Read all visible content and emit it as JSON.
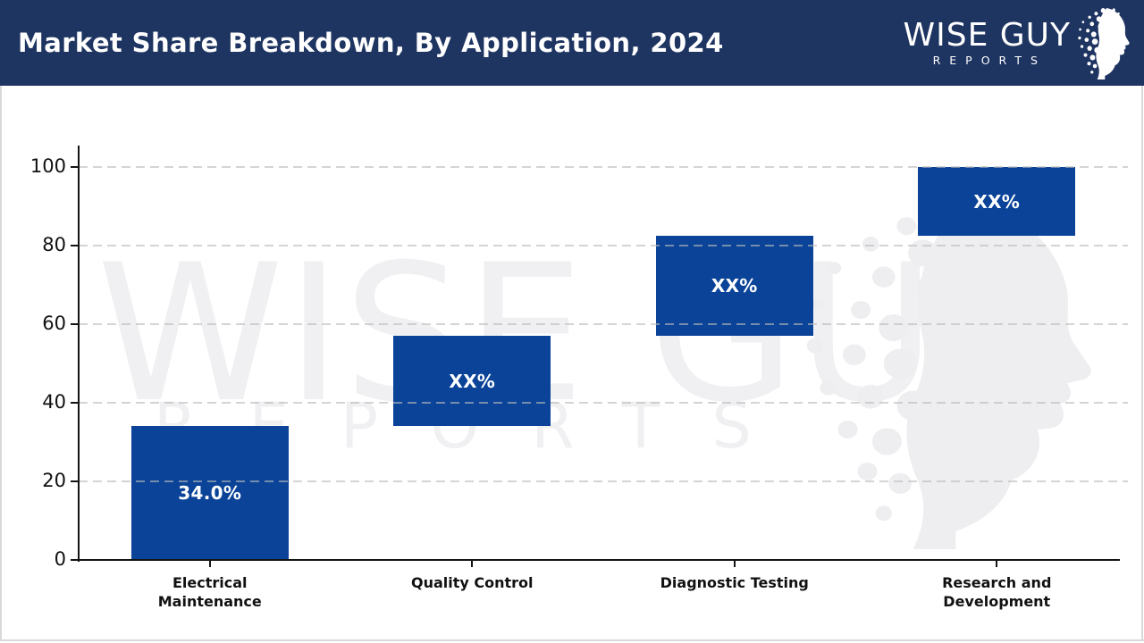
{
  "header": {
    "title": "Market Share Breakdown, By Application, 2024",
    "bg_color": "#1e3461",
    "logo": {
      "line1": "WISE GUY",
      "line2": "REPORTS"
    }
  },
  "watermark": {
    "line1": "WISE GUY",
    "line2": "REPORTS"
  },
  "chart_data": {
    "type": "bar",
    "subtype": "waterfall",
    "title": "Market Share Breakdown, By Application, 2024",
    "categories": [
      "Electrical\nMaintenance",
      "Quality Control",
      "Diagnostic Testing",
      "Research and\nDevelopment"
    ],
    "bars": [
      {
        "category": "Electrical Maintenance",
        "label": "34.0%",
        "start": 0,
        "end": 34
      },
      {
        "category": "Quality Control",
        "label": "XX%",
        "start": 34,
        "end": 57
      },
      {
        "category": "Diagnostic Testing",
        "label": "XX%",
        "start": 57,
        "end": 82.5
      },
      {
        "category": "Research and Development",
        "label": "XX%",
        "start": 82.5,
        "end": 100
      }
    ],
    "bar_color": "#0a4398",
    "bar_label_color": "#ffffff",
    "ylim": [
      0,
      100
    ],
    "yticks": [
      0,
      20,
      40,
      60,
      80,
      100
    ],
    "xlabel": "",
    "ylabel": "",
    "grid": "horizontal-dashed",
    "legend": "none"
  }
}
